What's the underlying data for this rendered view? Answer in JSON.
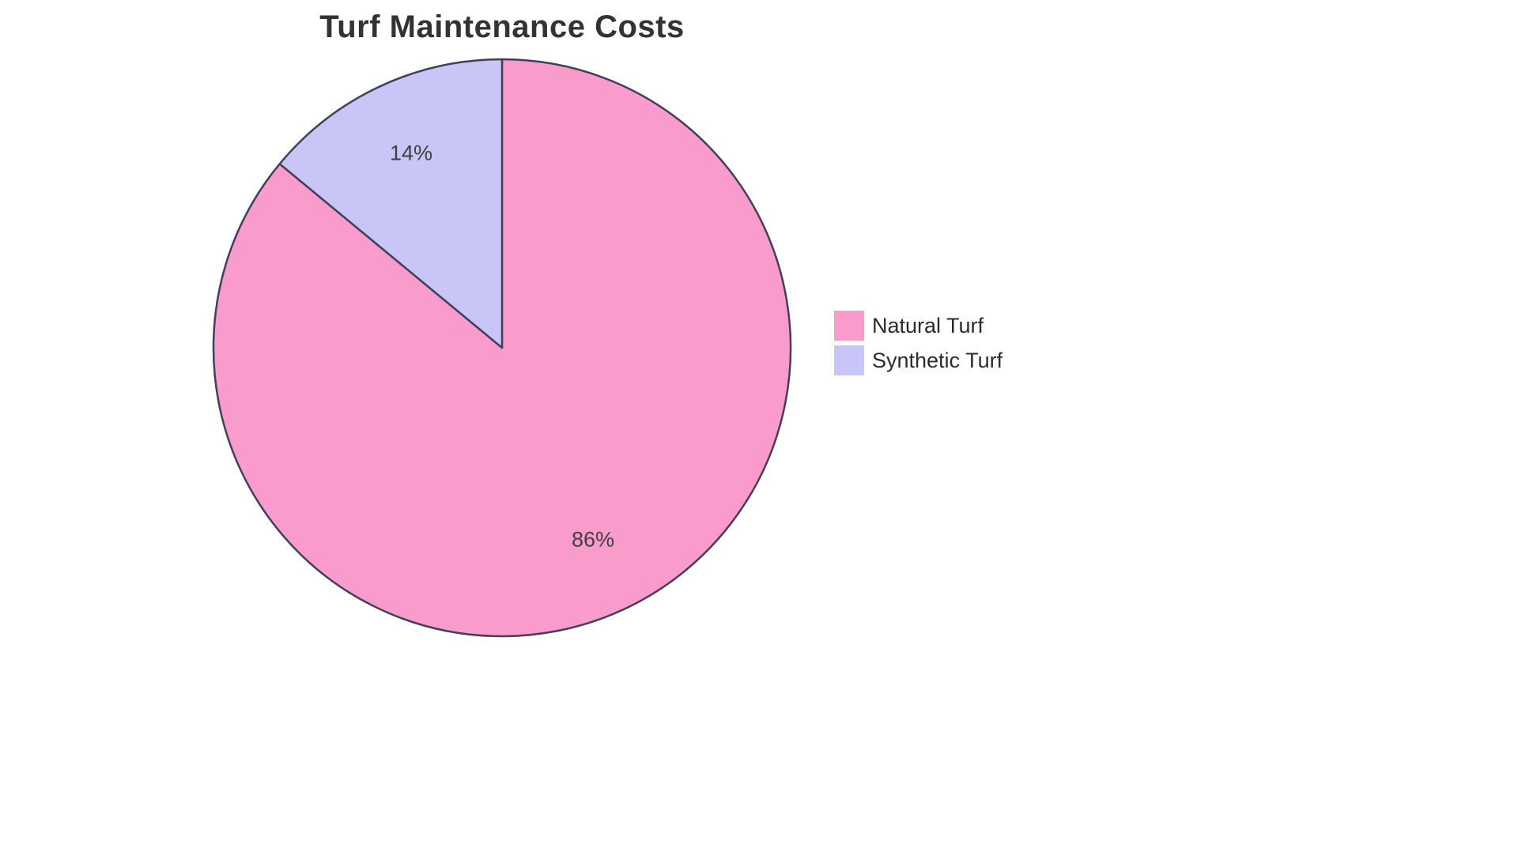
{
  "chart_data": {
    "type": "pie",
    "title": "Turf Maintenance Costs",
    "labels": [
      "Natural Turf",
      "Synthetic Turf"
    ],
    "values": [
      86,
      14
    ],
    "slice_labels": [
      "86%",
      "14%"
    ],
    "colors": [
      "#F99BCB",
      "#C9C5F7"
    ],
    "stroke_color": "#413E5E",
    "legend_position": "right",
    "start_angle_deg": -90,
    "direction": "clockwise"
  }
}
